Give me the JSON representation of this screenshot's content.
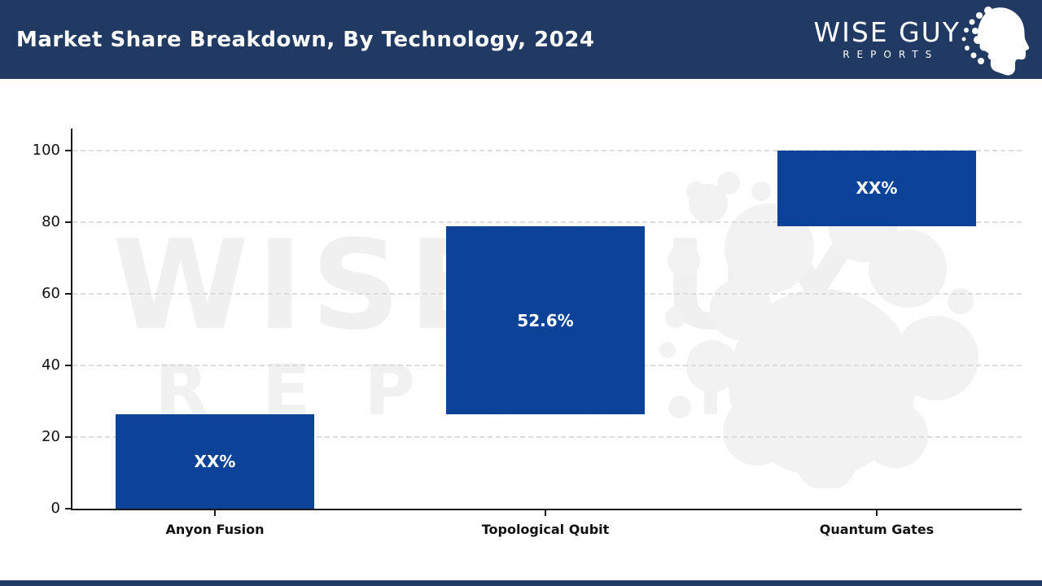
{
  "header": {
    "title": "Market Share Breakdown, By Technology, 2024",
    "logo_line1": "WISE GUY",
    "logo_line2": "REPORTS",
    "bg_color": "#213A64"
  },
  "watermark": {
    "line1": "WISE GUY",
    "line2": "REPORTS"
  },
  "chart_data": {
    "type": "bar",
    "subtype": "waterfall",
    "title": "Market Share Breakdown, By Technology, 2024",
    "categories": [
      "Anyon Fusion",
      "Topological Qubit",
      "Quantum Gates"
    ],
    "series": [
      {
        "name": "Market Share %",
        "segments": [
          {
            "category": "Anyon Fusion",
            "start": 0,
            "end": 26.3,
            "label": "XX%"
          },
          {
            "category": "Topological Qubit",
            "start": 26.3,
            "end": 78.9,
            "label": "52.6%"
          },
          {
            "category": "Quantum Gates",
            "start": 78.9,
            "end": 100,
            "label": "XX%"
          }
        ]
      }
    ],
    "xlabel": "",
    "ylabel": "",
    "ylim": [
      0,
      107
    ],
    "yticks": [
      0,
      20,
      40,
      60,
      80,
      100
    ],
    "grid": "horizontal-dashed",
    "legend": "none",
    "bar_color": "#0C4399",
    "bar_label_color": "#ffffff",
    "axis_color": "#1a1a1a",
    "gridline_color": "#dcdcdc"
  }
}
